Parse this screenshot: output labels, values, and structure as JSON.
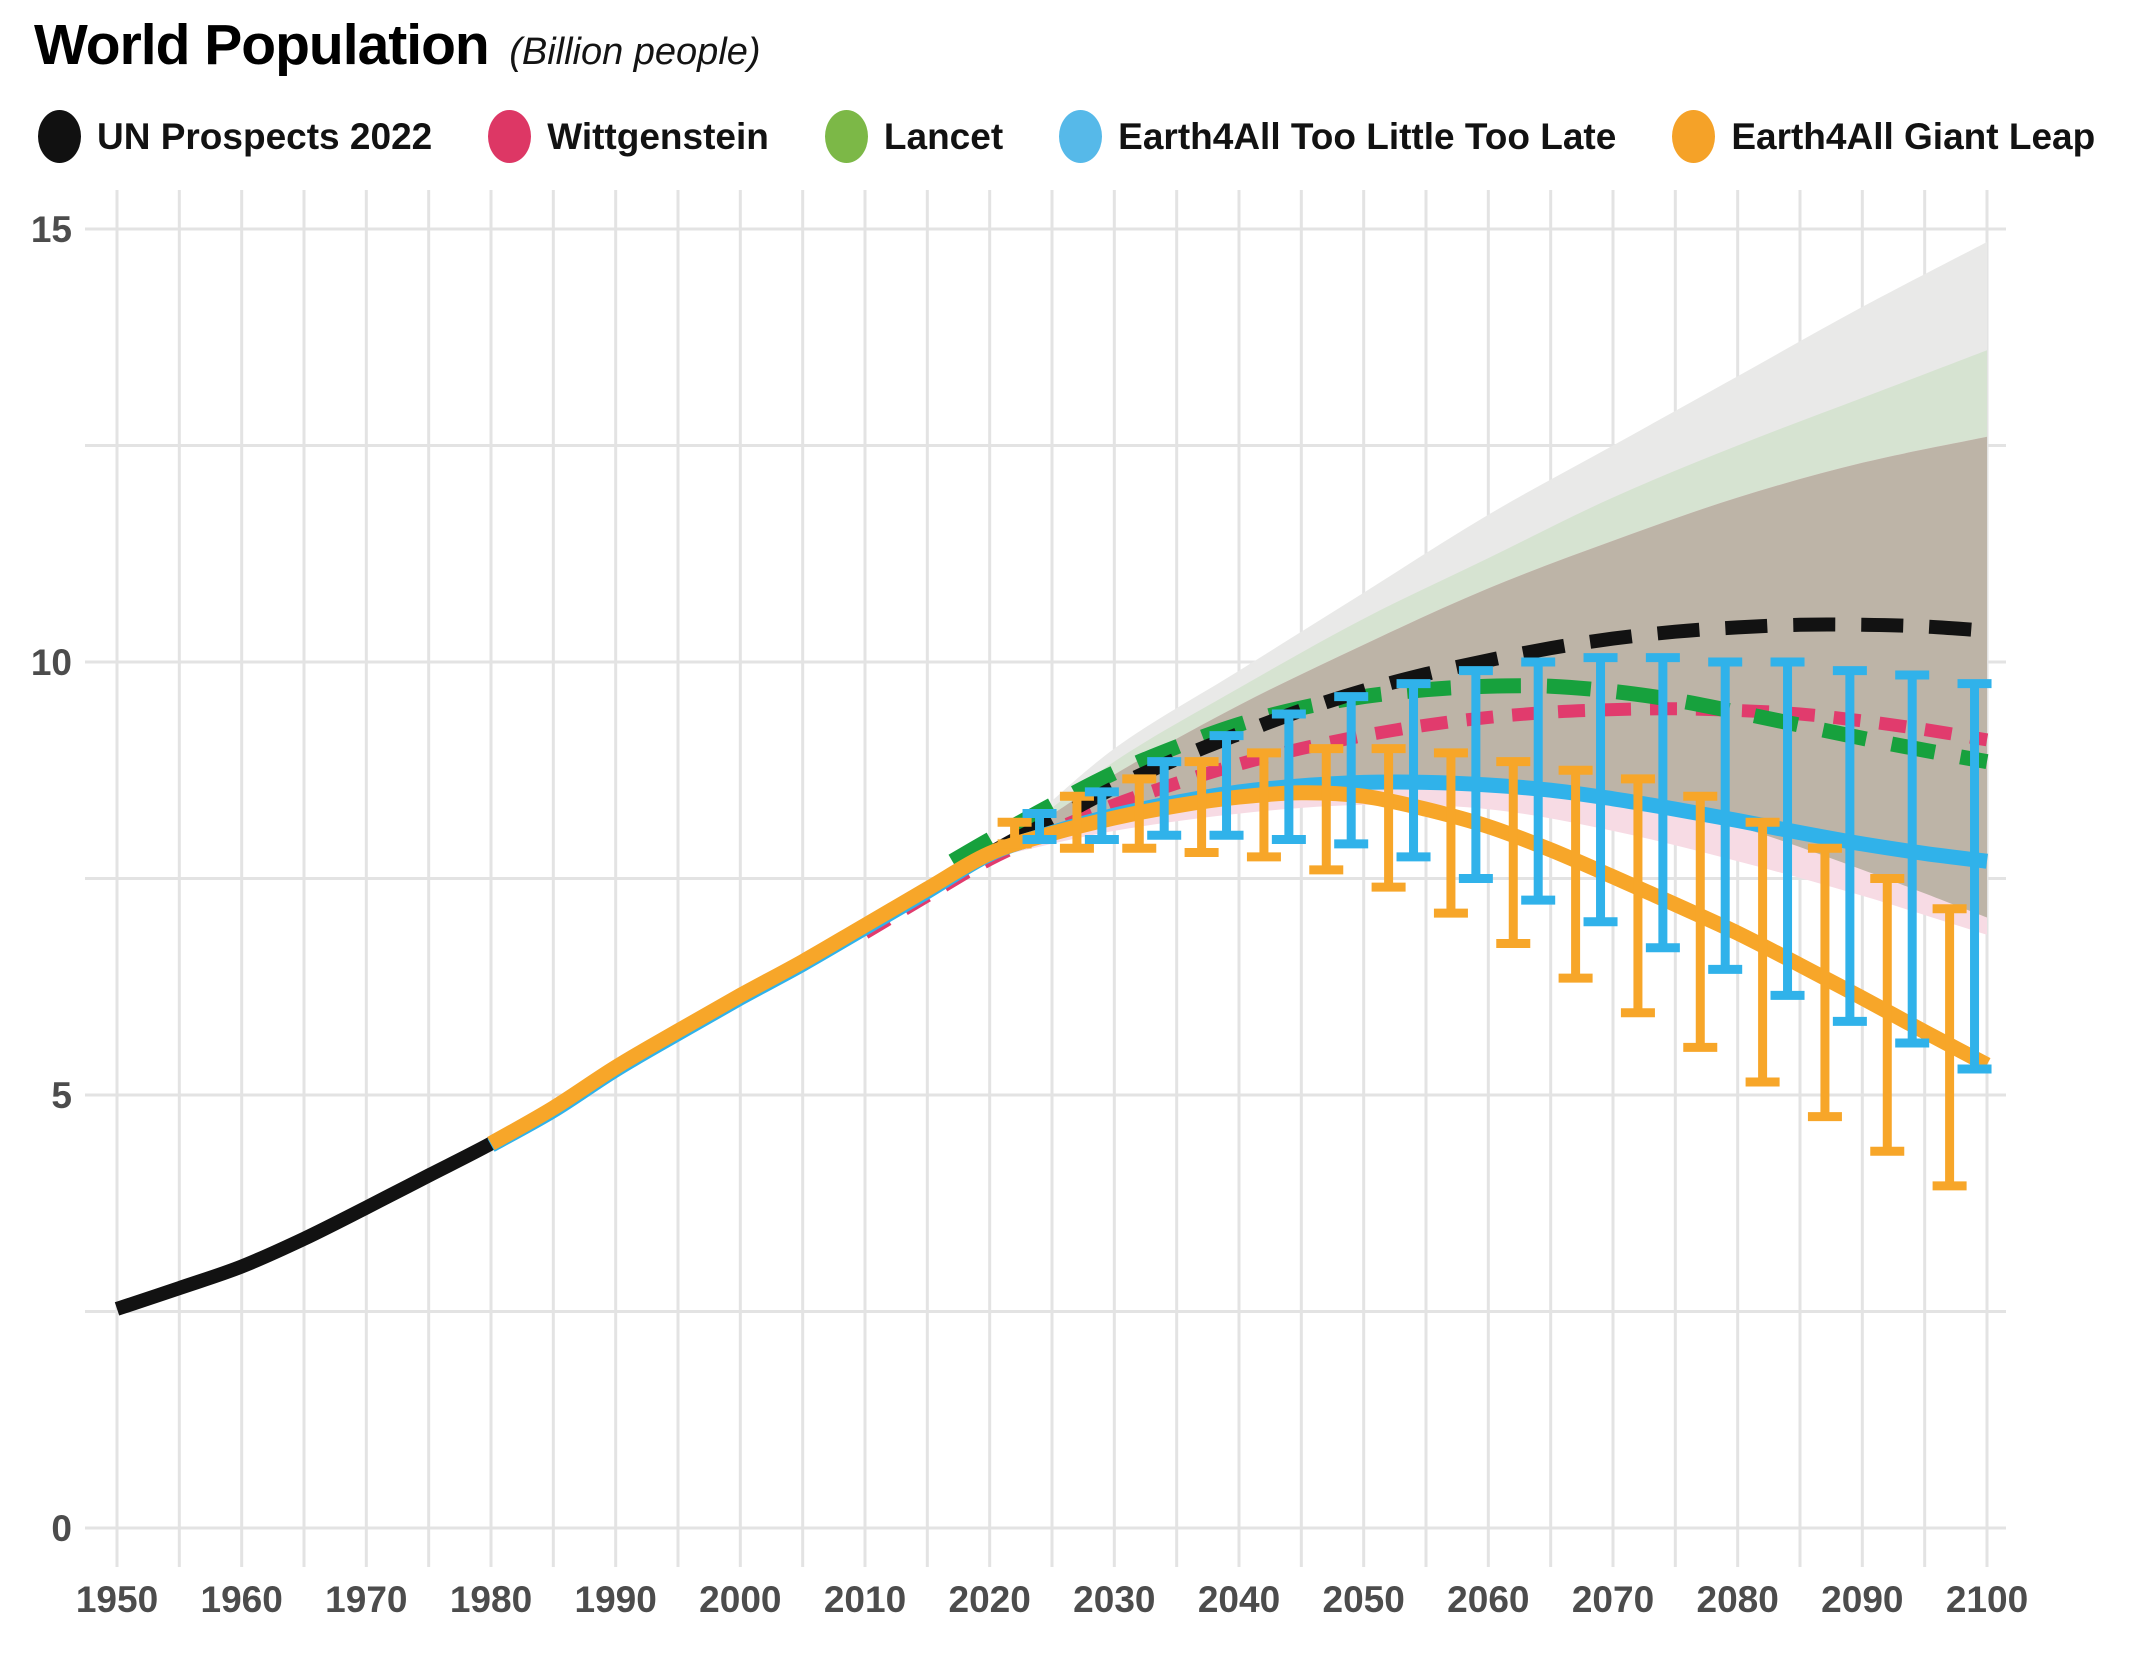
{
  "title": "World Population",
  "subtitle": "(Billion people)",
  "legend": {
    "items": [
      {
        "label": "UN Prospects 2022",
        "color": "#111111"
      },
      {
        "label": "Wittgenstein",
        "color": "#dd3765"
      },
      {
        "label": "Lancet",
        "color": "#7cb847"
      },
      {
        "label": "Earth4All Too Little Too Late",
        "color": "#56b9e9"
      },
      {
        "label": "Earth4All Giant Leap",
        "color": "#f5a228"
      }
    ]
  },
  "chart_data": {
    "type": "line",
    "title": "World Population",
    "xlabel": "",
    "ylabel": "Billion people",
    "x_axis": {
      "range": [
        1950,
        2100
      ],
      "ticks": [
        1950,
        1960,
        1970,
        1980,
        1990,
        2000,
        2010,
        2020,
        2030,
        2040,
        2050,
        2060,
        2070,
        2080,
        2090,
        2100
      ],
      "minor_grid_step": 5
    },
    "y_axis": {
      "range": [
        0,
        15
      ],
      "ticks": [
        0,
        5,
        10,
        15
      ],
      "grid_step": 2.5
    },
    "grid": {
      "on": true,
      "color": "#e3e3e3"
    },
    "legend_position": "top",
    "bands": [
      {
        "name": "UN Prospects 2022 high-low range",
        "color": "#e9e9e8",
        "years": [
          2022,
          2030,
          2040,
          2050,
          2060,
          2070,
          2080,
          2090,
          2100
        ],
        "upper": [
          8.0,
          9.0,
          9.9,
          10.8,
          11.7,
          12.5,
          13.3,
          14.1,
          14.85
        ],
        "lower": [
          7.85,
          8.2,
          8.45,
          8.6,
          8.55,
          8.45,
          8.1,
          7.6,
          7.05
        ]
      },
      {
        "name": "Lancet uncertainty range",
        "color": "#d6e3d1",
        "years": [
          2022,
          2030,
          2040,
          2050,
          2060,
          2070,
          2080,
          2090,
          2100
        ],
        "upper": [
          7.97,
          8.85,
          9.7,
          10.5,
          11.2,
          11.9,
          12.5,
          13.05,
          13.6
        ],
        "lower": [
          7.85,
          8.2,
          8.45,
          8.6,
          8.55,
          8.45,
          8.1,
          7.6,
          7.05
        ]
      },
      {
        "name": "Wittgenstein uncertainty range",
        "color": "#f7dbe4",
        "years": [
          2022,
          2030,
          2040,
          2050,
          2060,
          2070,
          2080,
          2090,
          2100
        ],
        "upper": [
          7.95,
          8.7,
          9.5,
          10.2,
          10.85,
          11.4,
          11.9,
          12.3,
          12.6
        ],
        "lower": [
          7.8,
          8.05,
          8.25,
          8.35,
          8.3,
          8.05,
          7.7,
          7.3,
          6.85
        ]
      },
      {
        "name": "Overlap band (UN 95% interval)",
        "color": "#bdb4a7",
        "years": [
          2022,
          2030,
          2040,
          2050,
          2060,
          2070,
          2080,
          2090,
          2100
        ],
        "upper": [
          7.95,
          8.7,
          9.5,
          10.2,
          10.85,
          11.4,
          11.9,
          12.3,
          12.6
        ],
        "lower": [
          7.85,
          8.2,
          8.45,
          8.6,
          8.55,
          8.45,
          8.1,
          7.6,
          7.05
        ]
      }
    ],
    "series": [
      {
        "name": "UN Prospects 2022 (historical)",
        "color": "#121212",
        "style": "solid",
        "width": 14,
        "points": [
          [
            1950,
            2.53
          ],
          [
            1955,
            2.77
          ],
          [
            1960,
            3.02
          ],
          [
            1965,
            3.34
          ],
          [
            1970,
            3.7
          ],
          [
            1975,
            4.07
          ],
          [
            1980,
            4.44
          ],
          [
            1985,
            4.85
          ],
          [
            1990,
            5.32
          ],
          [
            1995,
            5.74
          ],
          [
            2000,
            6.15
          ],
          [
            2005,
            6.54
          ],
          [
            2010,
            6.96
          ],
          [
            2015,
            7.38
          ],
          [
            2020,
            7.79
          ],
          [
            2022,
            7.95
          ]
        ]
      },
      {
        "name": "Wittgenstein",
        "color": "#e13b6d",
        "style": "dashed",
        "dash": [
          27,
          19
        ],
        "width": 13,
        "points": [
          [
            2010,
            6.87
          ],
          [
            2015,
            7.3
          ],
          [
            2020,
            7.72
          ],
          [
            2025,
            8.05
          ],
          [
            2030,
            8.35
          ],
          [
            2035,
            8.6
          ],
          [
            2040,
            8.82
          ],
          [
            2045,
            9.0
          ],
          [
            2050,
            9.15
          ],
          [
            2055,
            9.27
          ],
          [
            2060,
            9.36
          ],
          [
            2065,
            9.42
          ],
          [
            2070,
            9.45
          ],
          [
            2075,
            9.46
          ],
          [
            2080,
            9.44
          ],
          [
            2085,
            9.4
          ],
          [
            2090,
            9.32
          ],
          [
            2095,
            9.22
          ],
          [
            2100,
            9.1
          ]
        ]
      },
      {
        "name": "Lancet",
        "color": "#17a13d",
        "style": "dashed",
        "dash": [
          44,
          26
        ],
        "width": 15,
        "points": [
          [
            2017,
            7.7
          ],
          [
            2020,
            7.95
          ],
          [
            2025,
            8.35
          ],
          [
            2030,
            8.72
          ],
          [
            2035,
            9.02
          ],
          [
            2040,
            9.28
          ],
          [
            2045,
            9.47
          ],
          [
            2050,
            9.6
          ],
          [
            2055,
            9.68
          ],
          [
            2060,
            9.72
          ],
          [
            2065,
            9.72
          ],
          [
            2070,
            9.66
          ],
          [
            2075,
            9.56
          ],
          [
            2080,
            9.42
          ],
          [
            2085,
            9.27
          ],
          [
            2090,
            9.12
          ],
          [
            2095,
            8.98
          ],
          [
            2100,
            8.85
          ]
        ]
      },
      {
        "name": "UN Prospects 2022 (projection)",
        "color": "#121212",
        "style": "dashed",
        "dash": [
          42,
          26
        ],
        "width": 14,
        "points": [
          [
            2022,
            7.95
          ],
          [
            2025,
            8.17
          ],
          [
            2030,
            8.55
          ],
          [
            2035,
            8.88
          ],
          [
            2040,
            9.17
          ],
          [
            2045,
            9.44
          ],
          [
            2050,
            9.67
          ],
          [
            2055,
            9.86
          ],
          [
            2060,
            10.02
          ],
          [
            2065,
            10.16
          ],
          [
            2070,
            10.27
          ],
          [
            2075,
            10.35
          ],
          [
            2080,
            10.4
          ],
          [
            2085,
            10.43
          ],
          [
            2090,
            10.43
          ],
          [
            2095,
            10.41
          ],
          [
            2100,
            10.36
          ]
        ]
      },
      {
        "name": "Earth4All Too Little Too Late",
        "color": "#30b2ea",
        "style": "solid",
        "width": 15,
        "points": [
          [
            1980,
            4.42
          ],
          [
            1985,
            4.82
          ],
          [
            1990,
            5.29
          ],
          [
            1995,
            5.71
          ],
          [
            2000,
            6.12
          ],
          [
            2005,
            6.51
          ],
          [
            2010,
            6.93
          ],
          [
            2015,
            7.35
          ],
          [
            2020,
            7.78
          ],
          [
            2025,
            8.03
          ],
          [
            2030,
            8.23
          ],
          [
            2035,
            8.38
          ],
          [
            2040,
            8.5
          ],
          [
            2045,
            8.57
          ],
          [
            2050,
            8.61
          ],
          [
            2055,
            8.61
          ],
          [
            2060,
            8.58
          ],
          [
            2065,
            8.52
          ],
          [
            2070,
            8.42
          ],
          [
            2075,
            8.3
          ],
          [
            2080,
            8.17
          ],
          [
            2085,
            8.03
          ],
          [
            2090,
            7.9
          ],
          [
            2095,
            7.79
          ],
          [
            2100,
            7.7
          ]
        ]
      },
      {
        "name": "Earth4All Giant Leap",
        "color": "#f7a629",
        "style": "solid",
        "width": 15,
        "points": [
          [
            1980,
            4.44
          ],
          [
            1985,
            4.85
          ],
          [
            1990,
            5.32
          ],
          [
            1995,
            5.74
          ],
          [
            2000,
            6.15
          ],
          [
            2005,
            6.54
          ],
          [
            2010,
            6.96
          ],
          [
            2015,
            7.38
          ],
          [
            2020,
            7.79
          ],
          [
            2025,
            8.02
          ],
          [
            2030,
            8.2
          ],
          [
            2035,
            8.34
          ],
          [
            2040,
            8.44
          ],
          [
            2045,
            8.49
          ],
          [
            2050,
            8.45
          ],
          [
            2055,
            8.3
          ],
          [
            2060,
            8.1
          ],
          [
            2065,
            7.83
          ],
          [
            2070,
            7.52
          ],
          [
            2075,
            7.2
          ],
          [
            2080,
            6.87
          ],
          [
            2085,
            6.5
          ],
          [
            2090,
            6.12
          ],
          [
            2095,
            5.73
          ],
          [
            2100,
            5.35
          ]
        ]
      }
    ],
    "error_bars": [
      {
        "name": "Earth4All Giant Leap range",
        "color": "#f7a629",
        "years": [
          2022,
          2027,
          2032,
          2037,
          2042,
          2047,
          2052,
          2057,
          2062,
          2067,
          2072,
          2077,
          2082,
          2087,
          2092,
          2097
        ],
        "low": [
          7.9,
          7.85,
          7.85,
          7.8,
          7.75,
          7.6,
          7.4,
          7.1,
          6.75,
          6.35,
          5.95,
          5.55,
          5.15,
          4.75,
          4.35,
          3.95
        ],
        "high": [
          8.15,
          8.45,
          8.65,
          8.85,
          8.95,
          9.0,
          9.0,
          8.95,
          8.85,
          8.75,
          8.65,
          8.45,
          8.15,
          7.85,
          7.5,
          7.15
        ]
      },
      {
        "name": "Earth4All Too Little Too Late range",
        "color": "#30b2ea",
        "years": [
          2024,
          2029,
          2034,
          2039,
          2044,
          2049,
          2054,
          2059,
          2064,
          2069,
          2074,
          2079,
          2084,
          2089,
          2094,
          2099
        ],
        "low": [
          7.95,
          7.95,
          8.0,
          8.0,
          7.95,
          7.9,
          7.75,
          7.5,
          7.25,
          7.0,
          6.7,
          6.45,
          6.15,
          5.85,
          5.6,
          5.3
        ],
        "high": [
          8.25,
          8.5,
          8.85,
          9.15,
          9.4,
          9.6,
          9.75,
          9.9,
          10.0,
          10.05,
          10.05,
          10.0,
          10.0,
          9.9,
          9.85,
          9.75
        ]
      }
    ]
  }
}
